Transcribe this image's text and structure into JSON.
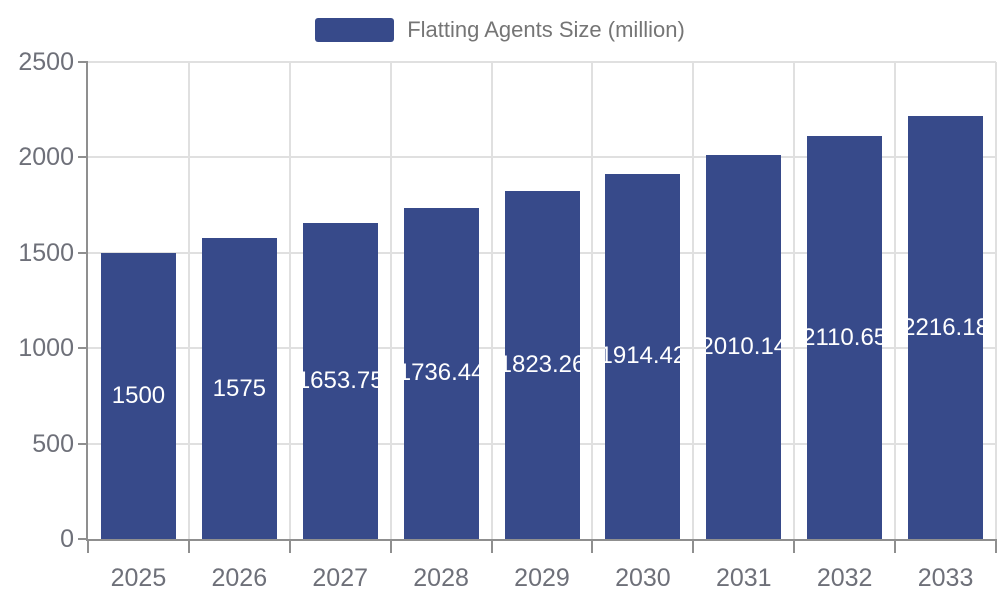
{
  "legend": {
    "label": "Flatting Agents Size (million)"
  },
  "colors": {
    "bar": "#374a8a",
    "bar_label": "#ffffff",
    "axis_line": "#8f8f8f",
    "grid_line": "#e0e0e0",
    "axis_text": "#6e7079",
    "legend_text": "#757575",
    "background": "#ffffff"
  },
  "chart_data": {
    "type": "bar",
    "title": "Flatting Agents Size (million)",
    "series_name": "Flatting Agents Size (million)",
    "categories": [
      "2025",
      "2026",
      "2027",
      "2028",
      "2029",
      "2030",
      "2031",
      "2032",
      "2033"
    ],
    "values": [
      1500,
      1575,
      1653.75,
      1736.44,
      1823.26,
      1914.42,
      2010.14,
      2110.65,
      2216.18
    ],
    "bar_labels": [
      "1500",
      "1575",
      "1653.75",
      "1736.44",
      "1823.26",
      "1914.42",
      "2010.14",
      "2110.65",
      "2216.18"
    ],
    "xlabel": "",
    "ylabel": "",
    "ylim": [
      0,
      2500
    ],
    "y_ticks": [
      0,
      500,
      1000,
      1500,
      2000,
      2500
    ],
    "y_tick_labels": [
      "0",
      "500",
      "1000",
      "1500",
      "2000",
      "2500"
    ],
    "grid": true,
    "legend_position": "top",
    "bar_label_position": "inside-center",
    "bar_label_color": "white"
  }
}
